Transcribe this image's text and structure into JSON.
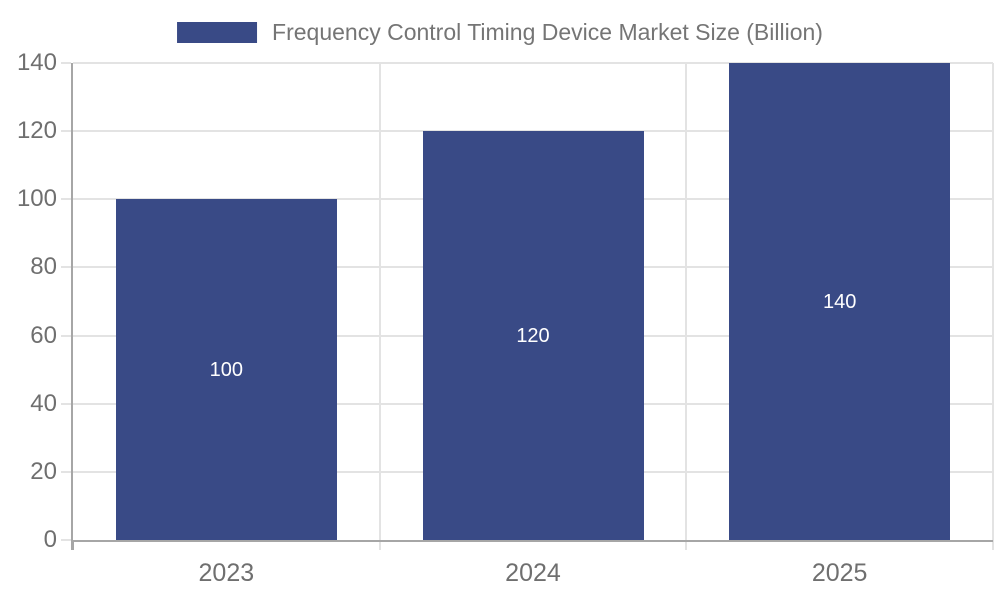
{
  "chart_data": {
    "type": "bar",
    "title": "Frequency Control Timing Device Market Size (Billion)",
    "categories": [
      "2023",
      "2024",
      "2025"
    ],
    "values": [
      100,
      120,
      140
    ],
    "xlabel": "",
    "ylabel": "",
    "ylim": [
      0,
      140
    ],
    "yticks": [
      0,
      20,
      40,
      60,
      80,
      100,
      120,
      140
    ],
    "grid": true,
    "legend_position": "top",
    "data_label_position": "inside-center"
  },
  "colors": {
    "bar": "#394A86",
    "grid_line": "#E3E3E3",
    "axis_line": "#A6A6A6",
    "tick_label": "#6F6F6F",
    "title_text": "#757575",
    "data_label": "#FFFFFF",
    "background": "#FFFFFF"
  }
}
